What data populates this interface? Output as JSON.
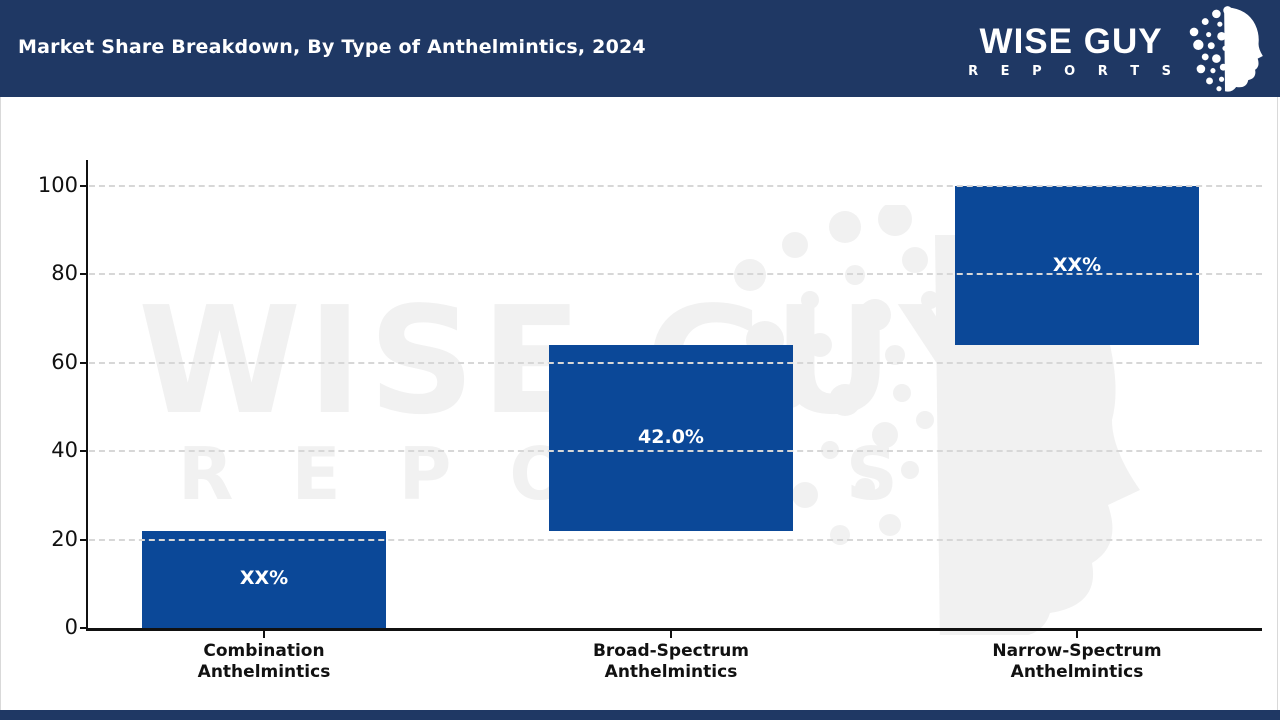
{
  "header": {
    "title": "Market Share Breakdown, By Type of Anthelmintics, 2024",
    "brand_line1": "WISE GUY",
    "brand_line2": "R E P O R T S"
  },
  "watermark": {
    "line1": "WISE GUY",
    "line2": "REPORTS"
  },
  "colors": {
    "header_bg": "#1f3864",
    "bar_fill": "#0b4898",
    "bar_label_text": "#ffffff",
    "axis": "#111111",
    "grid": "#d7d7d7",
    "watermark": "#f1f1f1"
  },
  "chart_data": {
    "type": "bar",
    "variant": "floating-segment-waterfall",
    "title": "Market Share Breakdown, By Type of Anthelmintics, 2024",
    "categories": [
      "Combination\nAnthelmintics",
      "Broad-Spectrum\nAnthelmintics",
      "Narrow-Spectrum\nAnthelmintics"
    ],
    "bars": [
      {
        "category": "Combination Anthelmintics",
        "start": 0,
        "end": 22,
        "label": "XX%"
      },
      {
        "category": "Broad-Spectrum Anthelmintics",
        "start": 22,
        "end": 64,
        "label": "42.0%"
      },
      {
        "category": "Narrow-Spectrum Anthelmintics",
        "start": 64,
        "end": 100,
        "label": "XX%"
      }
    ],
    "yticks": [
      0,
      20,
      40,
      60,
      80,
      100
    ],
    "ylim": [
      0,
      106
    ],
    "xlabel": "",
    "ylabel": "",
    "grid": "horizontal-dashed",
    "legend": "none"
  }
}
